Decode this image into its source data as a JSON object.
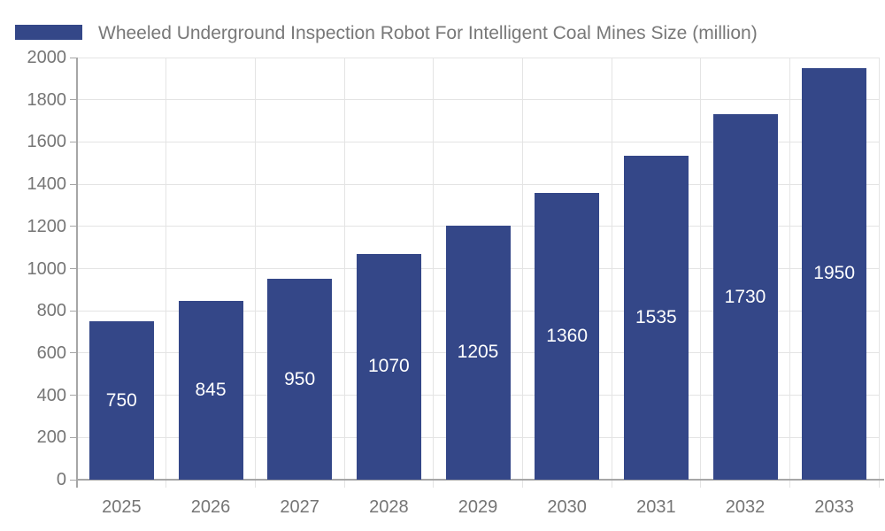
{
  "legend": {
    "position": "top-left",
    "label": "Wheeled Underground Inspection Robot For Intelligent Coal Mines Size (million)"
  },
  "colors": {
    "bar": "#344788",
    "title_text": "#787878",
    "axis_text": "#757575",
    "grid": "#e4e4e4",
    "axis_line": "#a6a6a6",
    "value_label": "#ffffff",
    "background": "#ffffff"
  },
  "chart_data": {
    "type": "bar",
    "title": "Wheeled Underground Inspection Robot For Intelligent Coal Mines Size (million)",
    "categories": [
      "2025",
      "2026",
      "2027",
      "2028",
      "2029",
      "2030",
      "2031",
      "2032",
      "2033"
    ],
    "values": [
      750,
      845,
      950,
      1070,
      1205,
      1360,
      1535,
      1730,
      1950
    ],
    "xlabel": "",
    "ylabel": "",
    "ylim": [
      0,
      2000
    ],
    "yticks": [
      0,
      200,
      400,
      600,
      800,
      1000,
      1200,
      1400,
      1600,
      1800,
      2000
    ],
    "grid": true,
    "legend_position": "top-left",
    "value_labels": "inside-center"
  }
}
